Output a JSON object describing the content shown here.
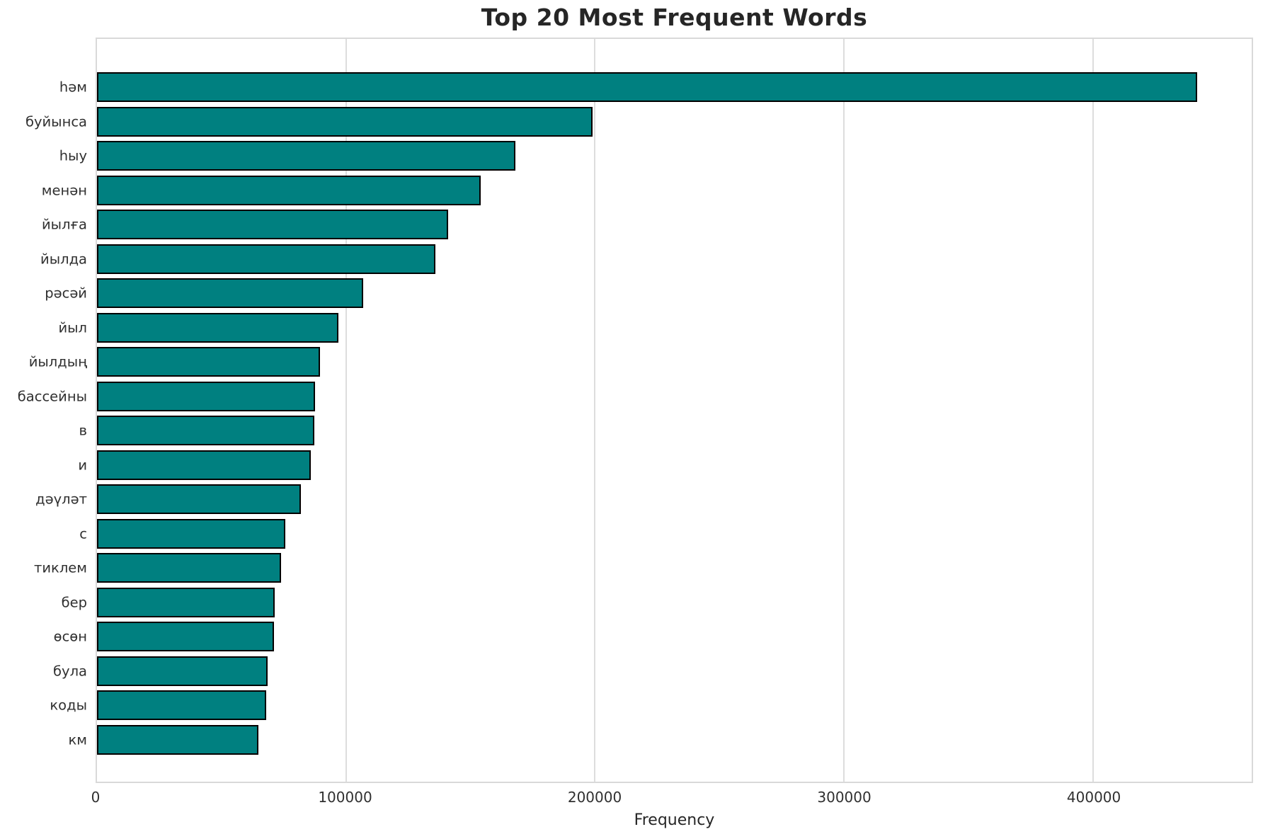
{
  "chart_data": {
    "type": "bar",
    "orientation": "horizontal",
    "title": "Top 20 Most Frequent Words",
    "xlabel": "Frequency",
    "ylabel": "",
    "categories": [
      "һәм",
      "буйынса",
      "һыу",
      "менән",
      "йылға",
      "йылда",
      "рәсәй",
      "йыл",
      "йылдың",
      "бассейны",
      "в",
      "и",
      "дәүләт",
      "с",
      "тиклем",
      "бер",
      "өсөн",
      "була",
      "коды",
      "км"
    ],
    "values": [
      442000,
      199000,
      168000,
      154000,
      141000,
      136000,
      107000,
      97000,
      89500,
      87600,
      87400,
      86000,
      82000,
      75700,
      74000,
      71500,
      71200,
      68600,
      68100,
      64700
    ],
    "xticks": [
      0,
      100000,
      200000,
      300000,
      400000
    ],
    "xtick_labels": [
      "0",
      "100000",
      "200000",
      "300000",
      "400000"
    ],
    "xlim": [
      0,
      463800
    ],
    "grid": true,
    "legend": false,
    "colors": {
      "bar_fill": "#008080",
      "bar_edge": "#000000",
      "gridline": "#dddddd",
      "spine": "#d9d9d9",
      "title_text": "#262626",
      "tick_text": "#303030"
    }
  }
}
